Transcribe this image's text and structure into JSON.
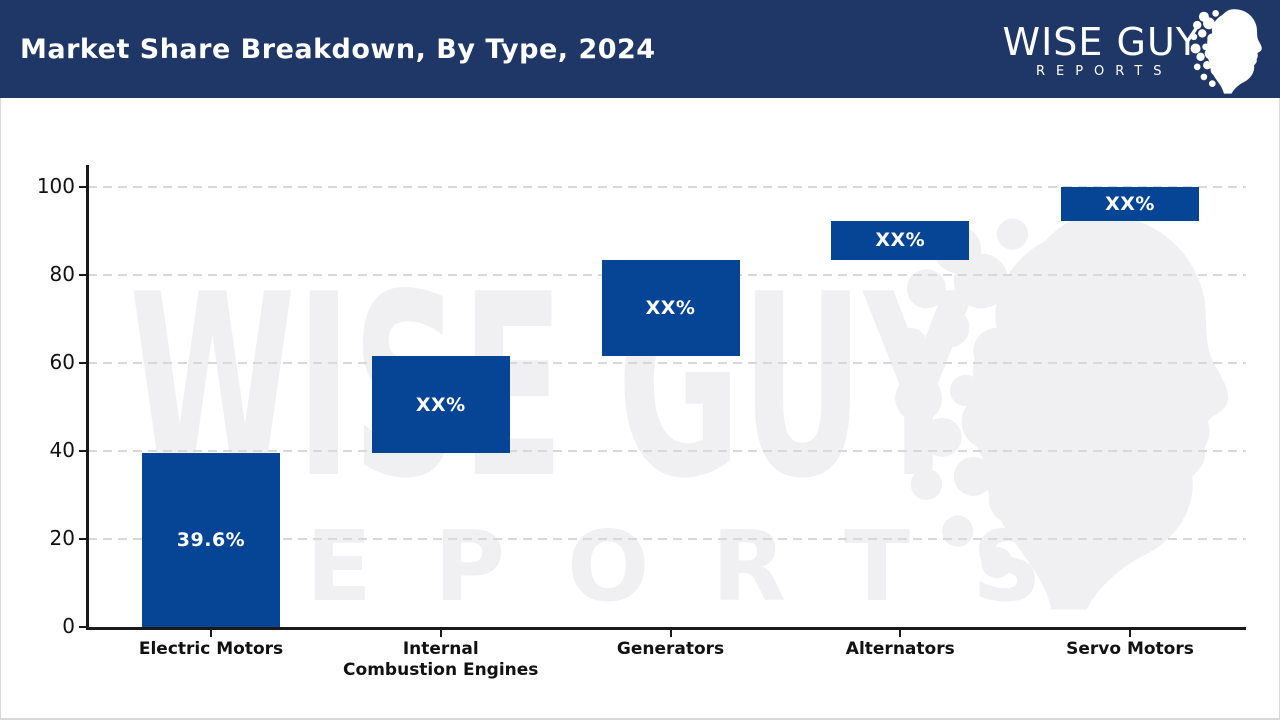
{
  "header": {
    "title": "Market Share Breakdown, By Type, 2024",
    "logo_line1": "WISE GUY",
    "logo_line2": "REPORTS"
  },
  "watermark": {
    "line1": "WISE GUY",
    "line2": "REPORTS"
  },
  "chart_data": {
    "type": "bar",
    "subtype": "waterfall",
    "title": "Market Share Breakdown, By Type, 2024",
    "categories": [
      "Electric Motors",
      "Internal Combustion Engines",
      "Generators",
      "Alternators",
      "Servo Motors"
    ],
    "xtick_labels": [
      "Electric Motors",
      "Internal\nCombustion Engines",
      "Generators",
      "Alternators",
      "Servo Motors"
    ],
    "segments": [
      {
        "category": "Electric Motors",
        "start": 0,
        "end": 39.6,
        "label": "39.6%"
      },
      {
        "category": "Internal Combustion Engines",
        "start": 39.6,
        "end": 61.5,
        "label": "XX%"
      },
      {
        "category": "Generators",
        "start": 61.5,
        "end": 83.5,
        "label": "XX%"
      },
      {
        "category": "Alternators",
        "start": 83.5,
        "end": 92.2,
        "label": "XX%"
      },
      {
        "category": "Servo Motors",
        "start": 92.2,
        "end": 100,
        "label": "XX%"
      }
    ],
    "yticks": [
      0,
      20,
      40,
      60,
      80,
      100
    ],
    "ylim": [
      0,
      105
    ],
    "grid": "horizontal-dashed",
    "legend": "none",
    "colors": {
      "bar": "#064495",
      "header_bg": "#1f3766",
      "grid": "#d8d8d8",
      "axis": "#1a1a1a",
      "bar_label_text": "#ffffff",
      "watermark": "#f0f0f3"
    }
  }
}
